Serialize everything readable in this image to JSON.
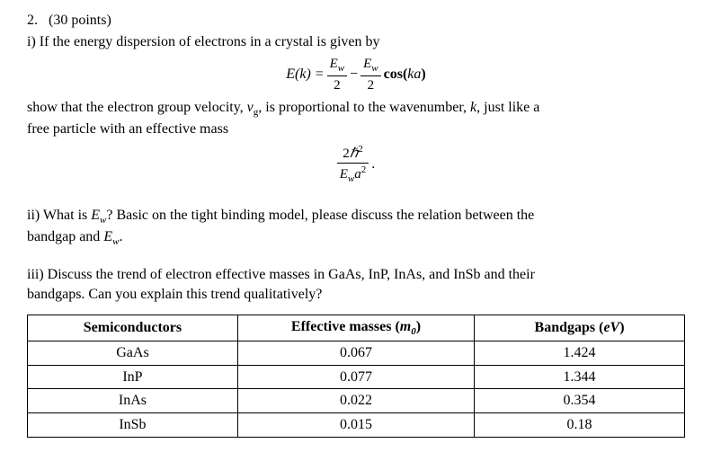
{
  "header": {
    "number": "2.",
    "points": "(30 points)"
  },
  "part_i": {
    "label": "i)",
    "intro": "If the energy dispersion of electrons in a crystal is given by",
    "eq_lhs": "E(k) =",
    "eq_num1": "E",
    "eq_sub1": "w",
    "eq_den1": "2",
    "eq_minus": "−",
    "eq_num2": "E",
    "eq_sub2": "w",
    "eq_den2": "2",
    "eq_cos": "cos(",
    "eq_ka": "ka",
    "eq_close": ")",
    "line2_a": "show that the electron group velocity, ",
    "line2_vg_v": "v",
    "line2_vg_g": "g",
    "line2_b": ", is proportional to the wavenumber, ",
    "line2_k": "k",
    "line2_c": ", just like a",
    "line3": "free particle with an effective mass",
    "mass_num_2": "2",
    "mass_num_hbar": "ℏ",
    "mass_num_sq": "2",
    "mass_den_E": "E",
    "mass_den_w": "w",
    "mass_den_a": "a",
    "mass_den_sq": "2",
    "mass_period": "."
  },
  "part_ii": {
    "label": "ii)",
    "text_a": " What is ",
    "Ew_E": "E",
    "Ew_w": "w",
    "text_b": "? Basic on the tight binding model, please discuss the relation between the",
    "line2_a": "bandgap and ",
    "line2_E": "E",
    "line2_w": "w",
    "line2_period": "."
  },
  "part_iii": {
    "label": "iii)",
    "text": " Discuss the trend of electron effective masses in GaAs, InP, InAs, and InSb and their",
    "line2": "bandgaps. Can you explain this trend qualitatively?"
  },
  "table": {
    "headers": {
      "col1": "Semiconductors",
      "col2_a": "Effective masses (",
      "col2_m": "m",
      "col2_0": "0",
      "col2_b": ")",
      "col3_a": "Bandgaps (",
      "col3_e": "e",
      "col3_V": "V",
      "col3_b": ")"
    },
    "rows": [
      {
        "name": "GaAs",
        "mass": "0.067",
        "gap": "1.424"
      },
      {
        "name": "InP",
        "mass": "0.077",
        "gap": "1.344"
      },
      {
        "name": "InAs",
        "mass": "0.022",
        "gap": "0.354"
      },
      {
        "name": "InSb",
        "mass": "0.015",
        "gap": "0.18"
      }
    ],
    "col_widths": [
      "32%",
      "36%",
      "32%"
    ]
  }
}
